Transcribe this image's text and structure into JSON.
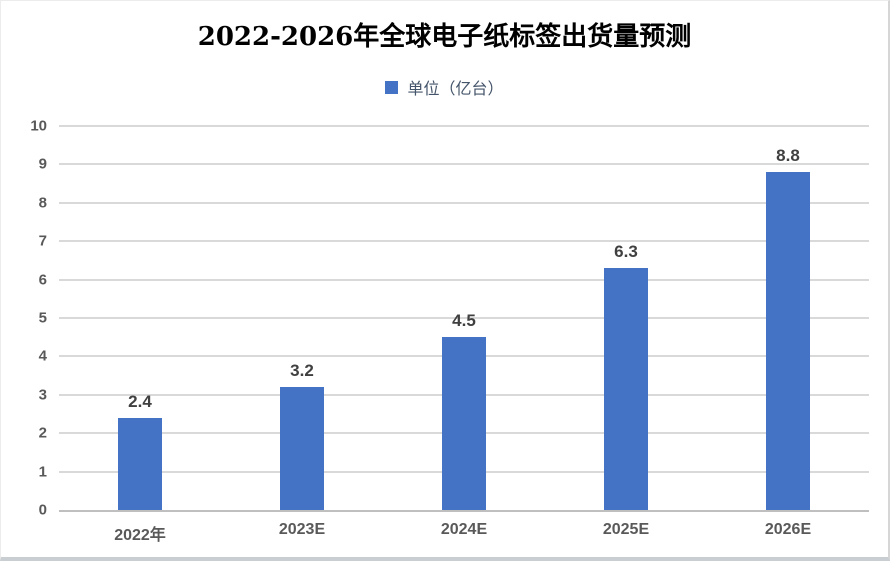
{
  "title": "2022-2026年全球电子纸标签出货量预测",
  "legend": {
    "label": "单位（亿台）"
  },
  "chart_data": {
    "type": "bar",
    "categories": [
      "2022年",
      "2023E",
      "2024E",
      "2025E",
      "2026E"
    ],
    "values": [
      2.4,
      3.2,
      4.5,
      6.3,
      8.8
    ],
    "data_labels": [
      "2.4",
      "3.2",
      "4.5",
      "6.3",
      "8.8"
    ],
    "title": "2022-2026年全球电子纸标签出货量预测",
    "legend_entries": [
      "单位（亿台）"
    ],
    "legend_position": "top",
    "xlabel": "",
    "ylabel": "",
    "ylim": [
      0,
      10
    ],
    "ytick_step": 1,
    "grid": true
  },
  "colors": {
    "bar": "#4472C4",
    "gridline": "#d9d9d9",
    "axis_line": "#bfbfbf",
    "axis_text": "#595959",
    "data_label": "#404040",
    "legend_text": "#44546a",
    "title_text": "#000000"
  }
}
